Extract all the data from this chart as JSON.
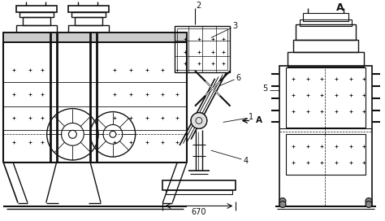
{
  "bg_color": "#ffffff",
  "line_color": "#111111",
  "figsize": [
    4.74,
    2.72
  ],
  "dpi": 100
}
